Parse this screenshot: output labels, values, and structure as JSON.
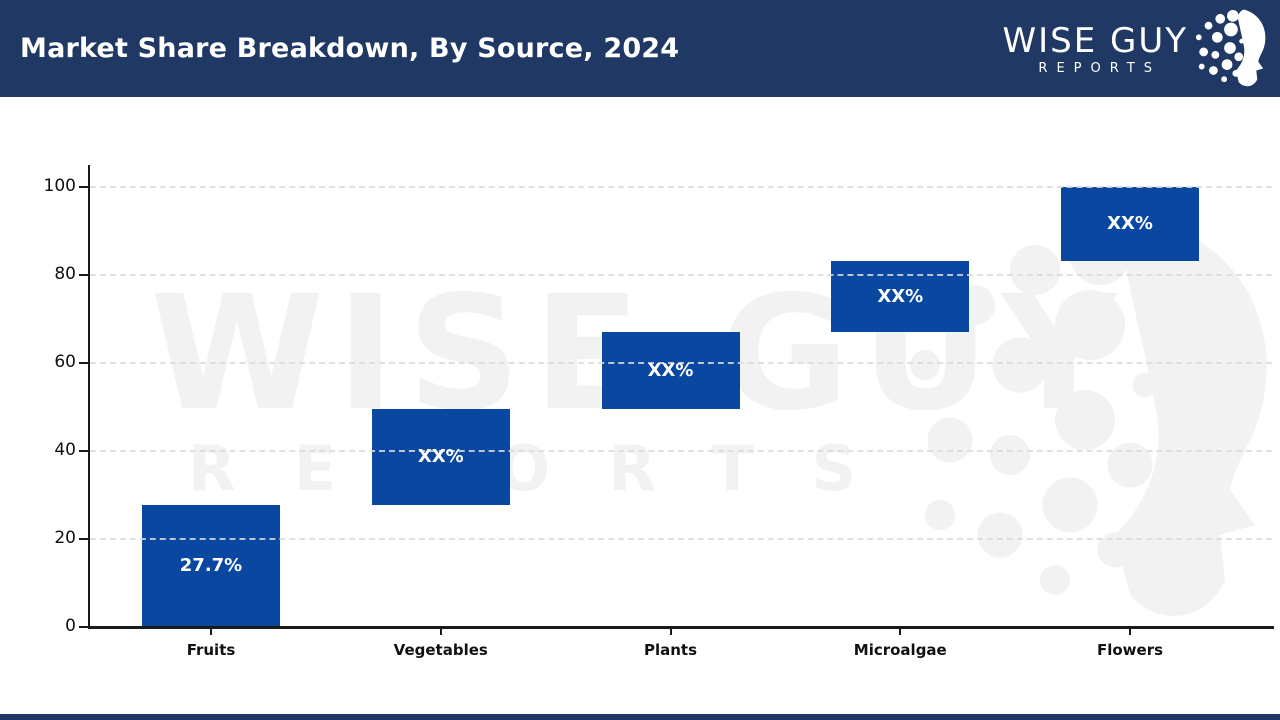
{
  "header": {
    "title": "Market Share Breakdown, By Source, 2024",
    "logo": {
      "line1": "WISE GUY",
      "line2": "REPORTS"
    }
  },
  "watermark": {
    "line1": "WISE GUY",
    "line2": "REPORTS"
  },
  "colors": {
    "header_bg": "#1f3864",
    "bar": "#0a47a1",
    "bar_label": "#ffffff",
    "grid": "#dadada",
    "axis": "#1a1a1a",
    "watermark": "#f2f2f2"
  },
  "chart_data": {
    "type": "bar",
    "subtype": "waterfall",
    "title": "Market Share Breakdown, By Source, 2024",
    "xlabel": "",
    "ylabel": "",
    "categories": [
      "Fruits",
      "Vegetables",
      "Plants",
      "Microalgae",
      "Flowers"
    ],
    "segments": [
      {
        "category": "Fruits",
        "start": 0,
        "end": 27.7,
        "label": "27.7%"
      },
      {
        "category": "Vegetables",
        "start": 27.7,
        "end": 49.5,
        "label": "XX%"
      },
      {
        "category": "Plants",
        "start": 49.5,
        "end": 67.0,
        "label": "XX%"
      },
      {
        "category": "Microalgae",
        "start": 67.0,
        "end": 83.2,
        "label": "XX%"
      },
      {
        "category": "Flowers",
        "start": 83.2,
        "end": 100.0,
        "label": "XX%"
      }
    ],
    "y_ticks": [
      0,
      20,
      40,
      60,
      80,
      100
    ],
    "ylim": [
      0,
      105
    ],
    "grid": "horizontal-dashed",
    "legend": "none"
  }
}
